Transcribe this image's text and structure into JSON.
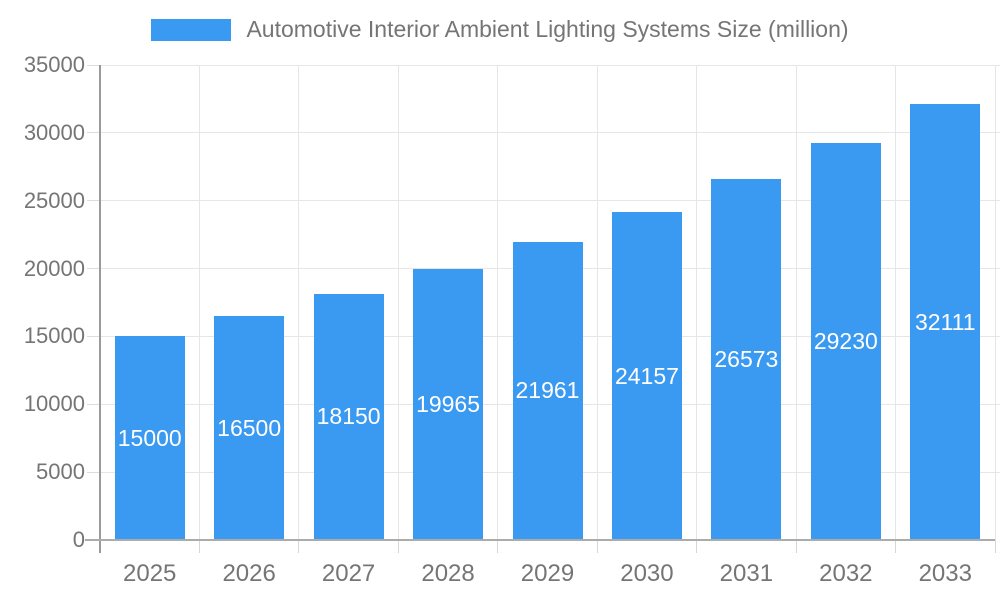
{
  "legend": {
    "label": "Automotive Interior Ambient Lighting Systems Size (million)",
    "swatch_color": "#3a99f0"
  },
  "chart_data": {
    "type": "bar",
    "title": "Automotive Interior Ambient Lighting Systems Size (million)",
    "series_name": "Automotive Interior Ambient Lighting Systems Size (million)",
    "categories": [
      "2025",
      "2026",
      "2027",
      "2028",
      "2029",
      "2030",
      "2031",
      "2032",
      "2033"
    ],
    "values": [
      15000,
      16500,
      18150,
      19965,
      21961,
      24157,
      26573,
      29230,
      32111
    ],
    "value_labels": [
      "15000",
      "16500",
      "18150",
      "19965",
      "21961",
      "24157",
      "26573",
      "29230",
      "32111"
    ],
    "xlabel": "",
    "ylabel": "",
    "ylim": [
      0,
      35000
    ],
    "ytick_interval": 5000,
    "yticks": [
      0,
      5000,
      10000,
      15000,
      20000,
      25000,
      30000,
      35000
    ],
    "grid": true,
    "legend_position": "top",
    "value_label_position": "inside-center",
    "colors": {
      "bar": "#3a99f0",
      "value_label_text": "#ffffff",
      "axis_text": "#757575",
      "axis_line": "#9a9a9a",
      "gridline": "#e6e6e6",
      "background": "#ffffff"
    }
  }
}
